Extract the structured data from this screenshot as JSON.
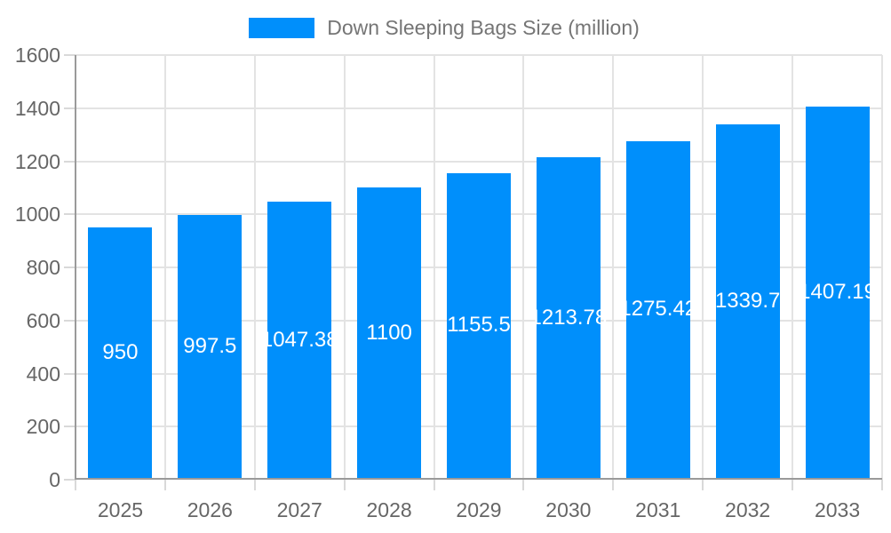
{
  "chart_data": {
    "type": "bar",
    "title": "",
    "legend_label": "Down Sleeping Bags Size (million)",
    "legend_position": "top",
    "categories": [
      "2025",
      "2026",
      "2027",
      "2028",
      "2029",
      "2030",
      "2031",
      "2032",
      "2033"
    ],
    "series": [
      {
        "name": "Down Sleeping Bags Size (million)",
        "values": [
          950,
          997.5,
          1047.38,
          1100,
          1155.5,
          1213.78,
          1275.42,
          1339.7,
          1407.19
        ]
      }
    ],
    "data_labels": [
      "950",
      "997.5",
      "1047.38",
      "1100",
      "1155.5",
      "1213.78",
      "1275.42",
      "1339.7",
      "1407.19"
    ],
    "xlabel": "",
    "ylabel": "",
    "ylim": [
      0,
      1600
    ],
    "yticks": [
      0,
      200,
      400,
      600,
      800,
      1000,
      1200,
      1400,
      1600
    ],
    "grid": true,
    "colors": {
      "bar": "#008FFB",
      "grid_line": "#e3e3e3",
      "axis_line": "#9a9a9a",
      "tick": "#d9d9d9",
      "axis_label_text": "#666666",
      "legend_text": "#757575",
      "data_label_text": "#ffffff",
      "background": "#ffffff"
    }
  }
}
